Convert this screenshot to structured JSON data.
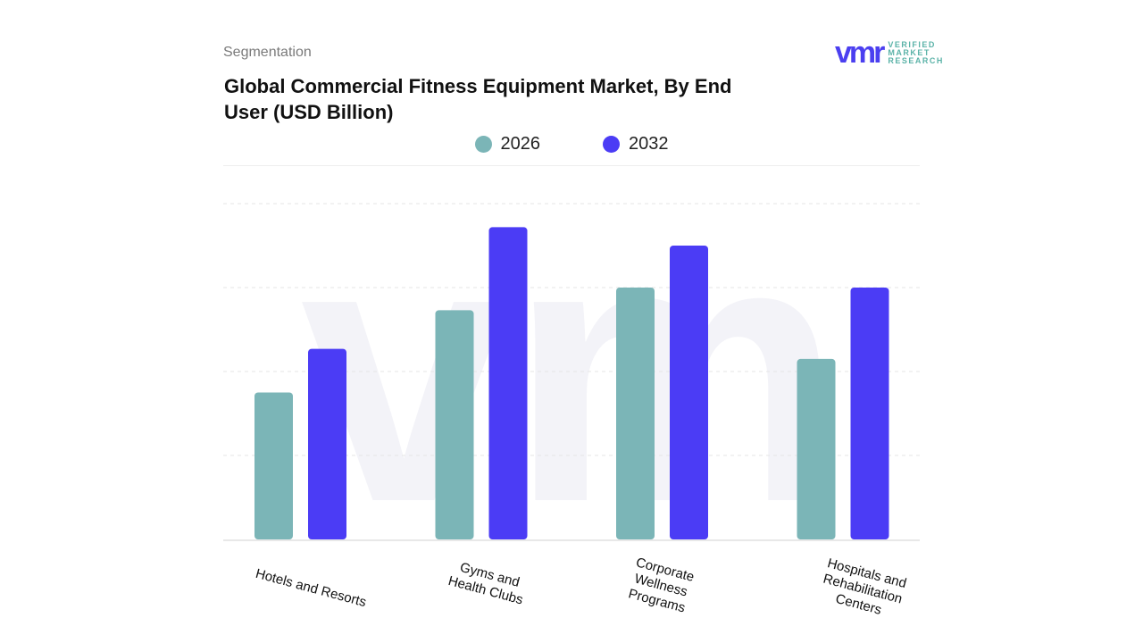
{
  "header": {
    "section": "Segmentation",
    "title": "Global Commercial Fitness Equipment Market, By End User (USD Billion)"
  },
  "logo": {
    "mark": "vmr",
    "line1": "VERIFIED",
    "line2": "MARKET",
    "line3": "RESEARCH"
  },
  "chart_data": {
    "type": "bar",
    "title": "Global Commercial Fitness Equipment Market, By End User (USD Billion)",
    "categories": [
      "Hotels and Resorts",
      "Gyms and Health Clubs",
      "Corporate Wellness Programs",
      "Hospitals and Rehabilitation Centers"
    ],
    "series": [
      {
        "name": "2026",
        "color": "#7bb5b7",
        "values": [
          1.75,
          2.73,
          3.0,
          2.15
        ]
      },
      {
        "name": "2032",
        "color": "#4b3cf5",
        "values": [
          2.27,
          3.72,
          3.5,
          3.0
        ]
      }
    ],
    "ylim": [
      0,
      4
    ],
    "y_ticks_labeled": false,
    "grid": true,
    "legend": "top-center"
  }
}
